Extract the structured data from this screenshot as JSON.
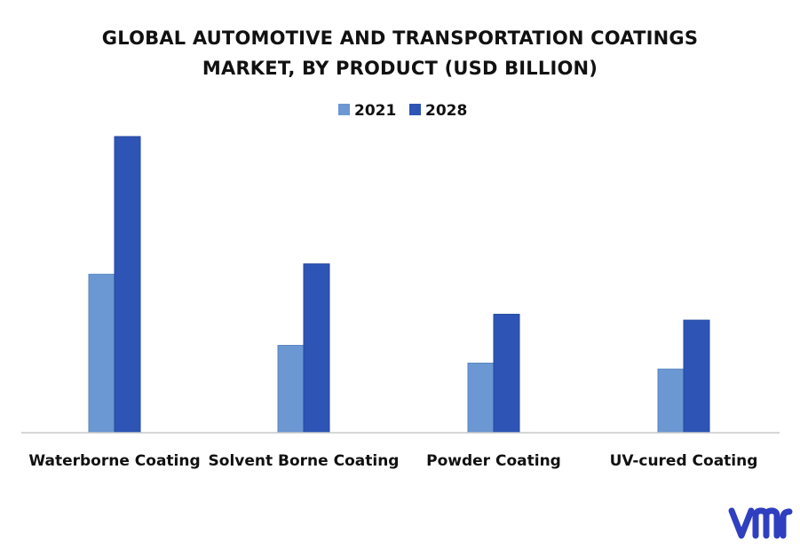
{
  "chart_data": {
    "type": "bar",
    "title_lines": [
      "GLOBAL AUTOMOTIVE AND TRANSPORTATION COATINGS",
      "MARKET, BY PRODUCT (USD BILLION)"
    ],
    "categories": [
      "Waterborne Coating",
      "Solvent Borne Coating",
      "Powder Coating",
      "UV-cured Coating"
    ],
    "series": [
      {
        "name": "2021",
        "color": "#6b97d2",
        "values": [
          10.7,
          5.9,
          4.7,
          4.3
        ]
      },
      {
        "name": "2028",
        "color": "#2e55b5",
        "values": [
          20.0,
          11.4,
          8.0,
          7.6
        ]
      }
    ],
    "xlabel": "",
    "ylabel": "",
    "ylim": [
      0,
      20
    ],
    "grid": false,
    "legend": "top-center"
  },
  "brand": {
    "logo_text": "vmr",
    "logo_color": "#2f3fc0",
    "logo_icon": "vmr-logo-icon"
  }
}
